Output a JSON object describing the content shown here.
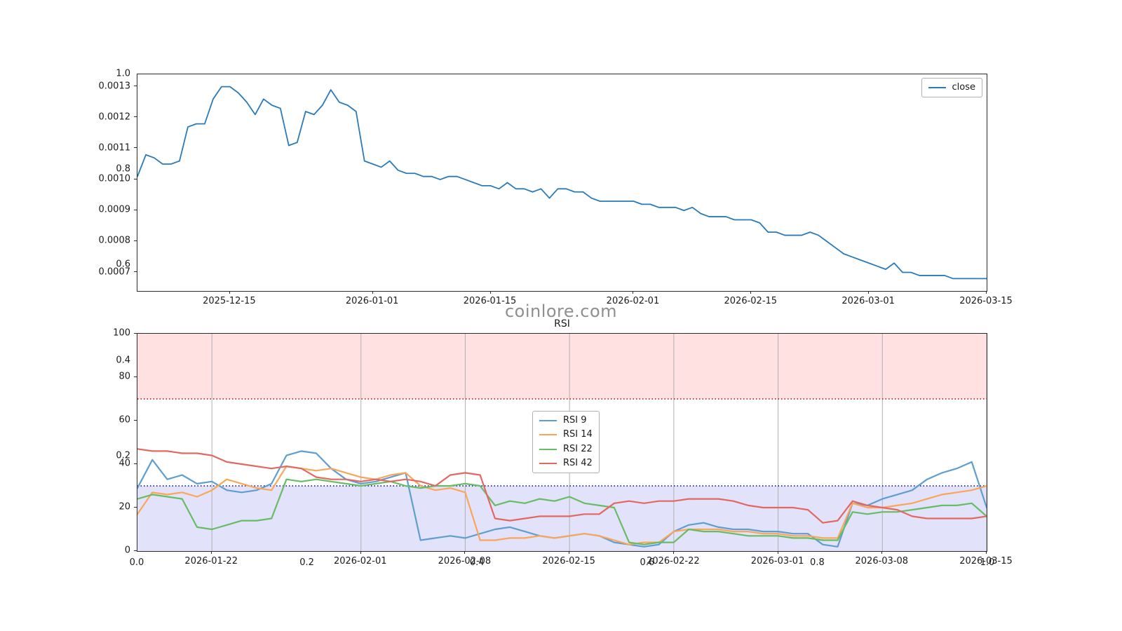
{
  "watermark": "coinlore.com",
  "chart_data": [
    {
      "name": "price-chart",
      "type": "line",
      "title": "",
      "x_start": "2025-12-04",
      "x_end": "2026-03-15",
      "x_interval": "daily",
      "ylim": [
        0.00064,
        0.00134
      ],
      "grid": "none",
      "line_width": 1.8,
      "legend_position": "upper right",
      "yticks": [
        {
          "label": "0.0013",
          "v": 0.0013
        },
        {
          "label": "0.0012",
          "v": 0.0012
        },
        {
          "label": "0.0011",
          "v": 0.0011
        },
        {
          "label": "0.0010",
          "v": 0.001
        },
        {
          "label": "0.0009",
          "v": 0.0009
        },
        {
          "label": "0.0008",
          "v": 0.0008
        },
        {
          "label": "0.0007",
          "v": 0.0007
        }
      ],
      "xticks": [
        {
          "label": "2025-12-15",
          "f": 0.1089
        },
        {
          "label": "2026-01-01",
          "f": 0.2772
        },
        {
          "label": "2026-01-15",
          "f": 0.4158
        },
        {
          "label": "2026-02-01",
          "f": 0.5842
        },
        {
          "label": "2026-02-15",
          "f": 0.7228
        },
        {
          "label": "2026-03-01",
          "f": 0.8614
        },
        {
          "label": "2026-03-15",
          "f": 1.0
        }
      ],
      "series": [
        {
          "name": "close",
          "color": "#2a7ab9",
          "values": [
            0.00101,
            0.00108,
            0.00107,
            0.00105,
            0.00105,
            0.00106,
            0.00117,
            0.00118,
            0.00118,
            0.00126,
            0.0013,
            0.0013,
            0.00128,
            0.00125,
            0.00121,
            0.00126,
            0.00124,
            0.00123,
            0.00111,
            0.00112,
            0.00122,
            0.00121,
            0.00124,
            0.00129,
            0.00125,
            0.00124,
            0.00122,
            0.00106,
            0.00105,
            0.00104,
            0.00106,
            0.00103,
            0.00102,
            0.00102,
            0.00101,
            0.00101,
            0.001,
            0.00101,
            0.00101,
            0.001,
            0.00099,
            0.00098,
            0.00098,
            0.00097,
            0.00099,
            0.00097,
            0.00097,
            0.00096,
            0.00097,
            0.00094,
            0.00097,
            0.00097,
            0.00096,
            0.00096,
            0.00094,
            0.00093,
            0.00093,
            0.00093,
            0.00093,
            0.00093,
            0.00092,
            0.00092,
            0.00091,
            0.00091,
            0.00091,
            0.0009,
            0.00091,
            0.00089,
            0.00088,
            0.00088,
            0.00088,
            0.00087,
            0.00087,
            0.00087,
            0.00086,
            0.00083,
            0.00083,
            0.00082,
            0.00082,
            0.00082,
            0.00083,
            0.00082,
            0.0008,
            0.00078,
            0.00076,
            0.00075,
            0.00074,
            0.00073,
            0.00072,
            0.00071,
            0.00073,
            0.0007,
            0.0007,
            0.00069,
            0.00069,
            0.00069,
            0.00069,
            0.00068,
            0.00068,
            0.00068,
            0.00068,
            0.00068
          ]
        }
      ]
    },
    {
      "name": "rsi-chart",
      "type": "line",
      "title": "RSI",
      "x_start": "2026-01-17",
      "x_end": "2026-03-15",
      "x_interval": "daily",
      "ylim": [
        0,
        100
      ],
      "grid": "vertical",
      "line_width": 2.2,
      "legend_position": "center",
      "yticks": [
        {
          "label": "100",
          "v": 100
        },
        {
          "label": "80",
          "v": 80
        },
        {
          "label": "60",
          "v": 60
        },
        {
          "label": "40",
          "v": 40
        },
        {
          "label": "20",
          "v": 20
        },
        {
          "label": "0",
          "v": 0
        }
      ],
      "xticks": [
        {
          "label": "2026-01-22",
          "f": 0.0877
        },
        {
          "label": "2026-02-01",
          "f": 0.2632
        },
        {
          "label": "2026-02-08",
          "f": 0.386
        },
        {
          "label": "2026-02-15",
          "f": 0.5088
        },
        {
          "label": "2026-02-22",
          "f": 0.6316
        },
        {
          "label": "2026-03-01",
          "f": 0.7544
        },
        {
          "label": "2026-03-08",
          "f": 0.8772
        },
        {
          "label": "2026-03-15",
          "f": 1.0
        }
      ],
      "bands": [
        {
          "name": "overbought-zone",
          "from": 70,
          "to": 100,
          "color": "rgba(255,20,30,0.13)"
        },
        {
          "name": "oversold-zone",
          "from": 0,
          "to": 30,
          "color": "rgba(30,30,220,0.13)"
        }
      ],
      "hlines": [
        {
          "name": "overbought-threshold",
          "y": 70,
          "color": "#c40000",
          "style": "dotted"
        },
        {
          "name": "oversold-threshold",
          "y": 30,
          "color": "#00008b",
          "style": "dotted"
        }
      ],
      "series": [
        {
          "name": "RSI 9",
          "color": "#5f9ed1",
          "values": [
            29,
            42,
            33,
            35,
            31,
            32,
            28,
            27,
            28,
            31,
            44,
            46,
            45,
            38,
            33,
            31,
            32,
            34,
            36,
            5,
            6,
            7,
            6,
            8,
            10,
            11,
            9,
            7,
            6,
            7,
            8,
            7,
            4,
            3,
            2,
            3,
            9,
            12,
            13,
            11,
            10,
            10,
            9,
            9,
            8,
            8,
            3,
            2,
            22,
            21,
            24,
            26,
            28,
            33,
            36,
            38,
            41,
            20
          ]
        },
        {
          "name": "RSI 14",
          "color": "#f9a65a",
          "values": [
            17,
            27,
            26,
            27,
            25,
            28,
            33,
            31,
            29,
            28,
            39,
            38,
            37,
            38,
            36,
            34,
            33,
            35,
            36,
            30,
            28,
            29,
            27,
            5,
            5,
            6,
            6,
            7,
            6,
            7,
            8,
            7,
            5,
            3,
            4,
            4,
            9,
            10,
            10,
            10,
            9,
            9,
            8,
            8,
            7,
            7,
            6,
            6,
            22,
            20,
            20,
            21,
            22,
            24,
            26,
            27,
            28,
            30
          ]
        },
        {
          "name": "RSI 22",
          "color": "#67bd63",
          "values": [
            24,
            26,
            25,
            24,
            11,
            10,
            12,
            14,
            14,
            15,
            33,
            32,
            33,
            32,
            31,
            30,
            31,
            32,
            30,
            29,
            30,
            30,
            31,
            30,
            21,
            23,
            22,
            24,
            23,
            25,
            22,
            21,
            20,
            4,
            3,
            4,
            4,
            10,
            9,
            9,
            8,
            7,
            7,
            7,
            6,
            6,
            5,
            5,
            18,
            17,
            18,
            18,
            19,
            20,
            21,
            21,
            22,
            16
          ]
        },
        {
          "name": "RSI 42",
          "color": "#e26862",
          "values": [
            47,
            46,
            46,
            45,
            45,
            44,
            41,
            40,
            39,
            38,
            39,
            38,
            34,
            33,
            33,
            32,
            33,
            32,
            33,
            32,
            30,
            35,
            36,
            35,
            15,
            14,
            15,
            16,
            16,
            16,
            17,
            17,
            22,
            23,
            22,
            23,
            23,
            24,
            24,
            24,
            23,
            21,
            20,
            20,
            20,
            19,
            13,
            14,
            23,
            21,
            20,
            19,
            16,
            15,
            15,
            15,
            15,
            16
          ]
        }
      ]
    }
  ],
  "figure_axis_ticks": {
    "y": [
      {
        "label": "1.0",
        "f": 1.0
      },
      {
        "label": "0.8",
        "f": 0.8
      },
      {
        "label": "0.6",
        "f": 0.6
      },
      {
        "label": "0.4",
        "f": 0.4
      },
      {
        "label": "0.2",
        "f": 0.2
      }
    ],
    "x": [
      {
        "label": "0.0",
        "f": 0.0
      },
      {
        "label": "0.2",
        "f": 0.2
      },
      {
        "label": "0.4",
        "f": 0.4
      },
      {
        "label": "0.6",
        "f": 0.6
      },
      {
        "label": "0.8",
        "f": 0.8
      },
      {
        "label": "1.0",
        "f": 1.0
      }
    ]
  }
}
